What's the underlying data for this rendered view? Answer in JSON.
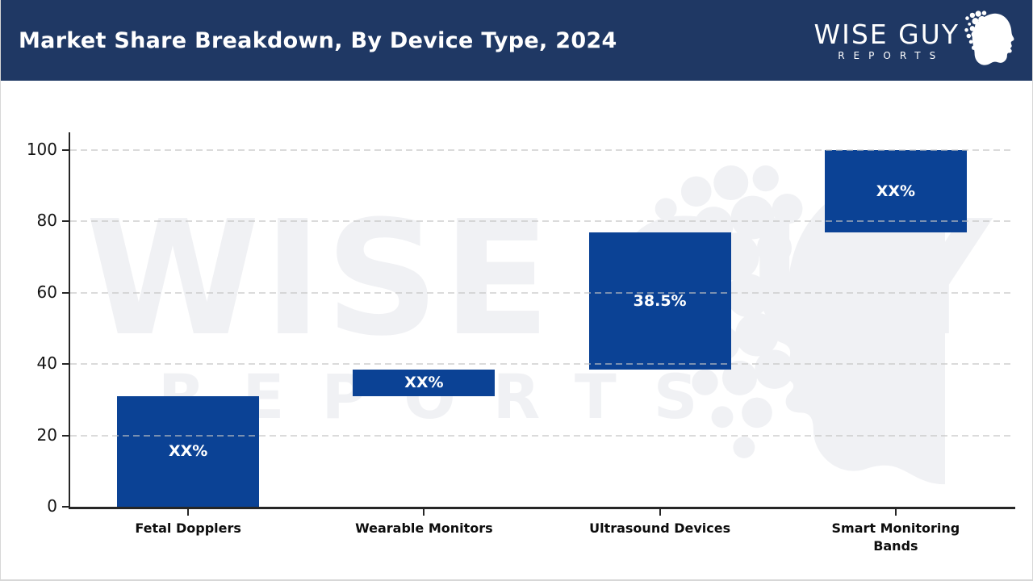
{
  "header": {
    "title": "Market Share Breakdown, By Device Type, 2024",
    "logo": {
      "name": "WISE GUY",
      "subtitle": "REPORTS"
    }
  },
  "watermark": {
    "name": "WISE GUY",
    "subtitle": "REPORTS"
  },
  "colors": {
    "header_bg": "#1f3864",
    "bar": "#0b4295",
    "bar_label": "#ffffff",
    "axis": "#262626",
    "grid": "#d9d9d9",
    "watermark": "#f0f1f4"
  },
  "chart_data": {
    "type": "bar",
    "subtype": "waterfall",
    "title": "Market Share Breakdown, By Device Type, 2024",
    "categories": [
      "Fetal Dopplers",
      "Wearable Monitors",
      "Ultrasound Devices",
      "Smart Monitoring Bands"
    ],
    "segments": [
      {
        "category": "Fetal Dopplers",
        "start": 0,
        "end": 31,
        "label": "XX%"
      },
      {
        "category": "Wearable Monitors",
        "start": 31,
        "end": 38.5,
        "label": "XX%"
      },
      {
        "category": "Ultrasound Devices",
        "start": 38.5,
        "end": 77,
        "label": "38.5%"
      },
      {
        "category": "Smart Monitoring Bands",
        "start": 77,
        "end": 100,
        "label": "XX%"
      }
    ],
    "yticks": [
      0,
      20,
      40,
      60,
      80,
      100
    ],
    "ylim": [
      0,
      105
    ],
    "xlabel": "",
    "ylabel": "",
    "grid": "horizontal-dashed",
    "legend": "none"
  }
}
